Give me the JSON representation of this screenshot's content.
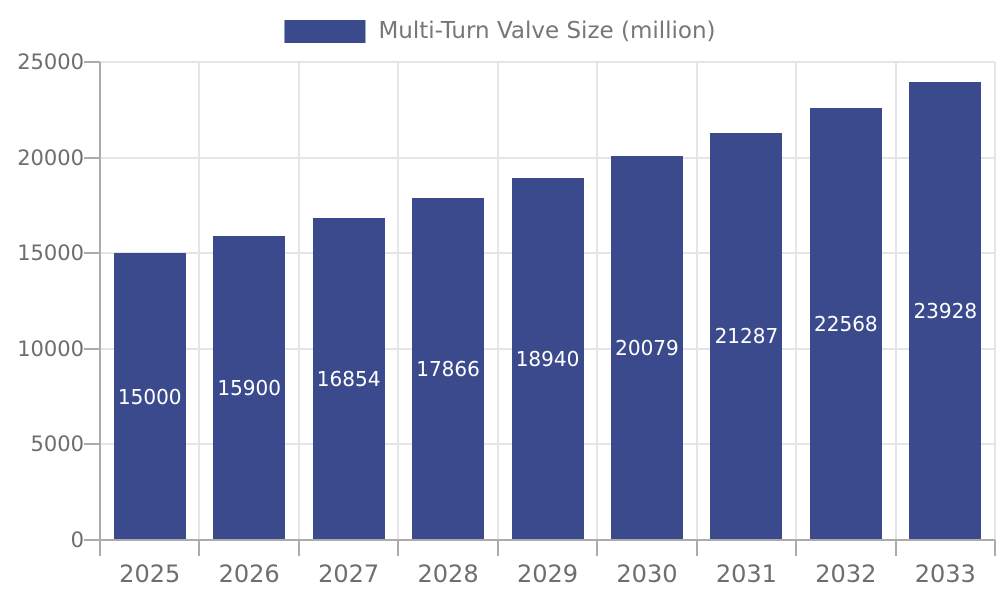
{
  "legend": {
    "label": "Multi-Turn Valve Size (million)"
  },
  "chart_data": {
    "type": "bar",
    "title": "",
    "legend_label": "Multi-Turn Valve Size (million)",
    "legend_position": "top",
    "categories": [
      "2025",
      "2026",
      "2027",
      "2028",
      "2029",
      "2030",
      "2031",
      "2032",
      "2033"
    ],
    "values": [
      15000,
      15900,
      16854,
      17866,
      18940,
      20079,
      21287,
      22568,
      23928
    ],
    "xlabel": "",
    "ylabel": "",
    "ylim": [
      0,
      25000
    ],
    "yticks": [
      0,
      5000,
      10000,
      15000,
      20000,
      25000
    ],
    "grid": true,
    "bar_color": "#3A4A8C",
    "bar_label_color": "#ffffff",
    "axis_color": "#ABABAE",
    "grid_color": "#E4E4E9",
    "tick_label_color": "#6E6E71",
    "legend_text_color": "#76777A",
    "background_color": "#ffffff"
  }
}
